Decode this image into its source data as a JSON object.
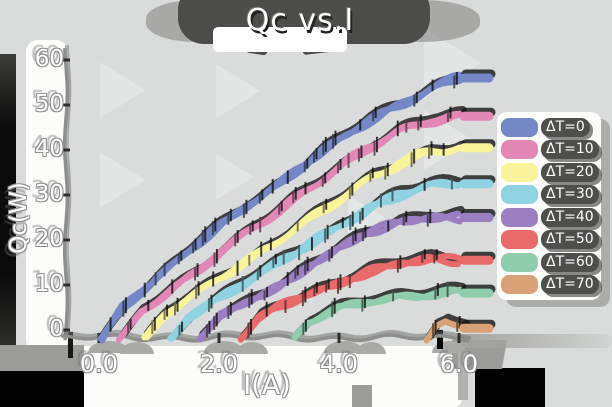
{
  "figure": {
    "title": "Qc vs.I"
  },
  "chart_data": {
    "type": "line",
    "title": "Qc vs.I",
    "xlabel": "I(A)",
    "ylabel": "Qc(W)",
    "xlim": [
      0,
      6.6
    ],
    "ylim": [
      -3,
      62
    ],
    "x_ticks": {
      "values": [
        0,
        2,
        4,
        6
      ],
      "labels": [
        "0.0",
        "2.0",
        "4.0",
        "6.0"
      ]
    },
    "y_ticks": {
      "values": [
        0,
        10,
        20,
        30,
        40,
        50,
        60
      ],
      "labels": [
        "0",
        "10",
        "20",
        "30",
        "40",
        "50",
        "60"
      ]
    },
    "grid": false,
    "legend_position": "center right",
    "marker": "vertical-tick",
    "line_style": "sketch-with-drop-shadow",
    "series": [
      {
        "name": "ΔT=0",
        "color": "#7487c6",
        "end_cap": 56,
        "points": [
          [
            0.05,
            -2
          ],
          [
            0.4,
            5
          ],
          [
            1.0,
            12
          ],
          [
            1.5,
            17.5
          ],
          [
            2.0,
            23
          ],
          [
            2.5,
            28
          ],
          [
            3.0,
            32.5
          ],
          [
            3.5,
            37.5
          ],
          [
            4.0,
            42
          ],
          [
            4.5,
            46.5
          ],
          [
            5.0,
            50
          ],
          [
            5.5,
            53.5
          ],
          [
            6.0,
            56
          ]
        ]
      },
      {
        "name": "ΔT=10",
        "color": "#e387b7",
        "end_cap": 47.5,
        "points": [
          [
            0.35,
            -2
          ],
          [
            0.7,
            4
          ],
          [
            1.2,
            9
          ],
          [
            1.7,
            13.5
          ],
          [
            2.0,
            17
          ],
          [
            2.5,
            22
          ],
          [
            3.0,
            26.5
          ],
          [
            3.5,
            31.5
          ],
          [
            4.0,
            36
          ],
          [
            4.5,
            40.5
          ],
          [
            5.0,
            44
          ],
          [
            5.5,
            46.5
          ],
          [
            6.0,
            47.5
          ]
        ]
      },
      {
        "name": "ΔT=20",
        "color": "#f9f49c",
        "end_cap": 40.5,
        "points": [
          [
            0.78,
            -2
          ],
          [
            1.1,
            3.5
          ],
          [
            1.6,
            8
          ],
          [
            2.0,
            11.5
          ],
          [
            2.5,
            15.5
          ],
          [
            3.0,
            20
          ],
          [
            3.5,
            24.5
          ],
          [
            4.0,
            29
          ],
          [
            4.5,
            33.5
          ],
          [
            5.0,
            37
          ],
          [
            5.5,
            39.5
          ],
          [
            6.0,
            40.5
          ]
        ]
      },
      {
        "name": "ΔT=30",
        "color": "#8fd3e2",
        "end_cap": 32.5,
        "points": [
          [
            1.2,
            -2
          ],
          [
            1.5,
            3
          ],
          [
            2.0,
            7
          ],
          [
            2.5,
            11
          ],
          [
            3.0,
            15
          ],
          [
            3.5,
            19
          ],
          [
            4.0,
            23
          ],
          [
            4.5,
            27
          ],
          [
            5.0,
            30
          ],
          [
            5.5,
            32
          ],
          [
            6.0,
            32.5
          ]
        ]
      },
      {
        "name": "ΔT=40",
        "color": "#9c7fc2",
        "end_cap": 25,
        "points": [
          [
            1.7,
            -2
          ],
          [
            2.0,
            3
          ],
          [
            2.5,
            6.5
          ],
          [
            3.0,
            10
          ],
          [
            3.5,
            14
          ],
          [
            4.0,
            18
          ],
          [
            4.5,
            21.5
          ],
          [
            5.0,
            24
          ],
          [
            5.5,
            25.2
          ],
          [
            6.0,
            25
          ]
        ]
      },
      {
        "name": "ΔT=50",
        "color": "#e96a6a",
        "end_cap": 15.5,
        "points": [
          [
            2.35,
            -2
          ],
          [
            2.65,
            2.5
          ],
          [
            3.0,
            5
          ],
          [
            3.5,
            8
          ],
          [
            4.0,
            10.5
          ],
          [
            4.5,
            13
          ],
          [
            5.0,
            14.5
          ],
          [
            5.5,
            15.5
          ],
          [
            6.0,
            15.5
          ]
        ]
      },
      {
        "name": "ΔT=60",
        "color": "#8fceac",
        "end_cap": 8.2,
        "points": [
          [
            3.28,
            -2
          ],
          [
            3.5,
            1.5
          ],
          [
            4.0,
            4.5
          ],
          [
            4.5,
            6.5
          ],
          [
            5.0,
            7.5
          ],
          [
            5.5,
            8.2
          ],
          [
            6.0,
            8.2
          ]
        ]
      },
      {
        "name": "ΔT=70",
        "color": "#d8a276",
        "end_cap": 0.4,
        "points": [
          [
            5.45,
            -2.5
          ],
          [
            5.6,
            1.5
          ],
          [
            5.75,
            2.7
          ],
          [
            5.95,
            1.2
          ],
          [
            6.05,
            0.5
          ]
        ]
      }
    ]
  }
}
